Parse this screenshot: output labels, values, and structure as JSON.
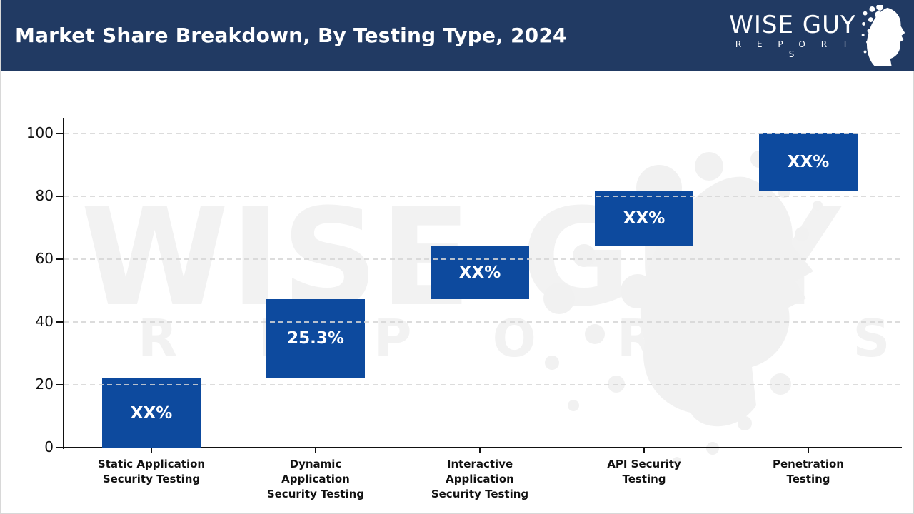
{
  "header": {
    "bg_color": "#213a63",
    "title": "Market Share Breakdown, By Testing Type, 2024",
    "logo": {
      "name": "WISE GUY",
      "sub": "R E P O R T S"
    }
  },
  "watermark": {
    "big": "WISE GUY",
    "sub": "R E P O R T S"
  },
  "chart_data": {
    "type": "bar",
    "subtype": "waterfall",
    "title": "Market Share Breakdown, By Testing Type, 2024",
    "xlabel": "",
    "ylabel": "",
    "ylim": [
      0,
      105
    ],
    "yticks": [
      0,
      20,
      40,
      60,
      80,
      100
    ],
    "grid": "horizontal-dashed, drawn above bars",
    "legend": "none",
    "bar_color": "#0d4a9e",
    "value_label_color": "#ffffff",
    "categories": [
      "Static Application Security Testing",
      "Dynamic Application Security Testing",
      "Interactive Application Security Testing",
      "API Security Testing",
      "Penetration Testing"
    ],
    "category_label_lines": [
      [
        "Static Application",
        "Security Testing"
      ],
      [
        "Dynamic",
        "Application",
        "Security Testing"
      ],
      [
        "Interactive",
        "Application",
        "Security Testing"
      ],
      [
        "API Security",
        "Testing"
      ],
      [
        "Penetration",
        "Testing"
      ]
    ],
    "segments": [
      {
        "category": "Static Application Security Testing",
        "start": 0,
        "end": 22,
        "value_label": "XX%"
      },
      {
        "category": "Dynamic Application Security Testing",
        "start": 22,
        "end": 47.3,
        "value_label": "25.3%"
      },
      {
        "category": "Interactive Application Security Testing",
        "start": 47.3,
        "end": 64,
        "value_label": "XX%"
      },
      {
        "category": "API Security Testing",
        "start": 64,
        "end": 81.7,
        "value_label": "XX%"
      },
      {
        "category": "Penetration Testing",
        "start": 81.7,
        "end": 100,
        "value_label": "XX%"
      }
    ]
  }
}
